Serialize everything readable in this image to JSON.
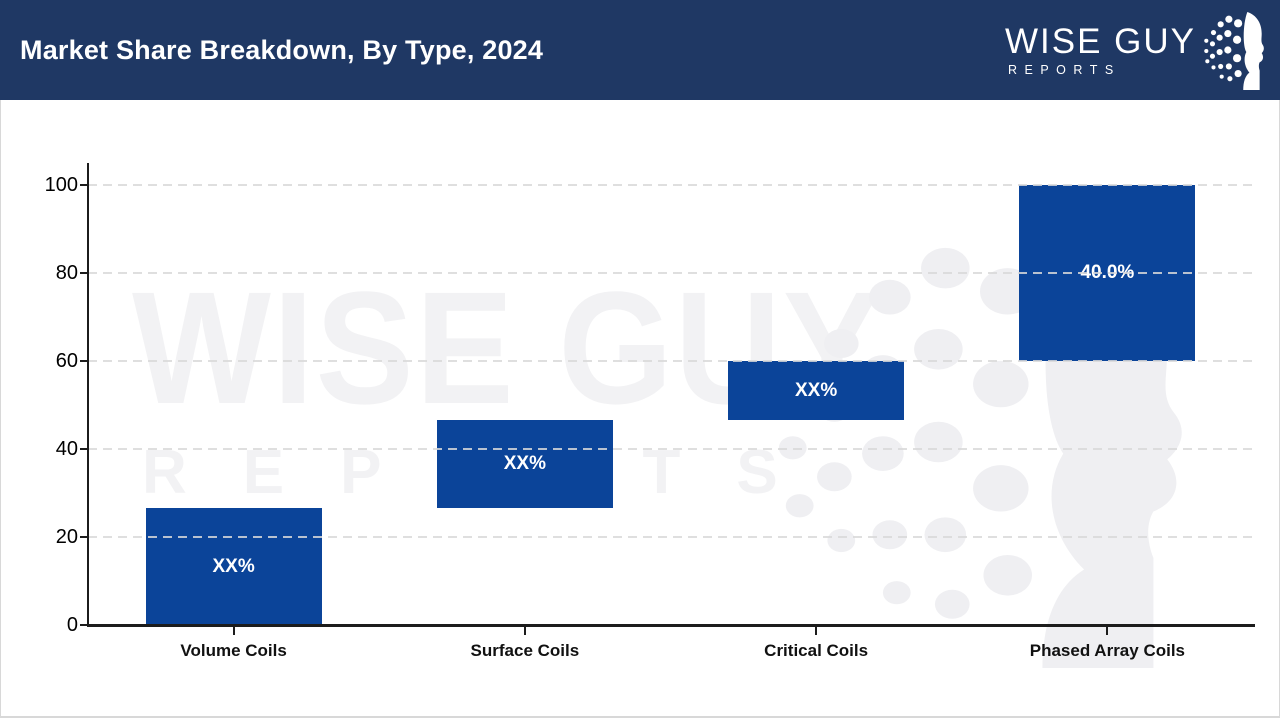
{
  "header": {
    "title": "Market Share Breakdown, By Type, 2024",
    "logo": {
      "line1": "WISE GUY",
      "line2": "REPORTS"
    }
  },
  "watermark": {
    "line1": "WISE GUY",
    "line2": "REPORTS"
  },
  "chart_data": {
    "type": "bar",
    "subtype": "waterfall",
    "title": "Market Share Breakdown, By Type, 2024",
    "categories": [
      "Volume Coils",
      "Surface Coils",
      "Critical Coils",
      "Phased Array Coils"
    ],
    "segments": [
      {
        "category": "Volume Coils",
        "start": 0,
        "end": 26.5,
        "label": "XX%"
      },
      {
        "category": "Surface Coils",
        "start": 26.5,
        "end": 46.5,
        "label": "XX%"
      },
      {
        "category": "Critical Coils",
        "start": 46.5,
        "end": 60,
        "label": "XX%"
      },
      {
        "category": "Phased Array Coils",
        "start": 60,
        "end": 100,
        "label": "40.0%"
      }
    ],
    "xlabel": "",
    "ylabel": "",
    "ylim": [
      0,
      100
    ],
    "yticks": [
      0,
      20,
      40,
      60,
      80,
      100
    ],
    "grid": "horizontal-dashed",
    "legend": "none"
  },
  "colors": {
    "header_bg": "#1f3864",
    "bar": "#0b4499",
    "bar_label": "#ffffff",
    "grid": "#d9d9d9",
    "axis": "#1c1c1c",
    "tick_label": "#111111",
    "watermark": "#f2f2f4"
  }
}
